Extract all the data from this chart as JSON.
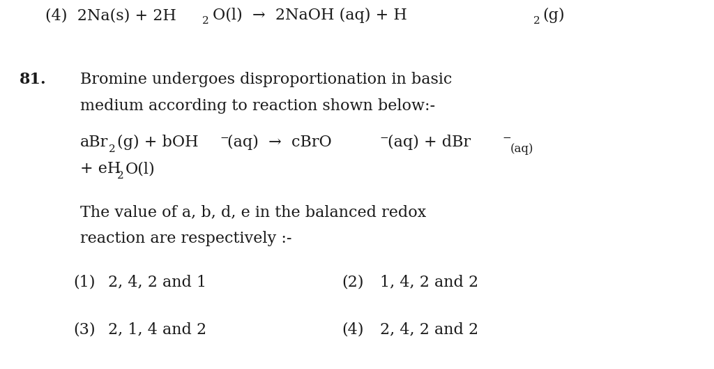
{
  "background_color": "#ffffff",
  "figsize": [
    10.24,
    5.29
  ],
  "dpi": 100,
  "font_family": "DejaVu Serif",
  "fs_main": 16,
  "fs_sub": 11,
  "text_color": "#1a1a1a"
}
